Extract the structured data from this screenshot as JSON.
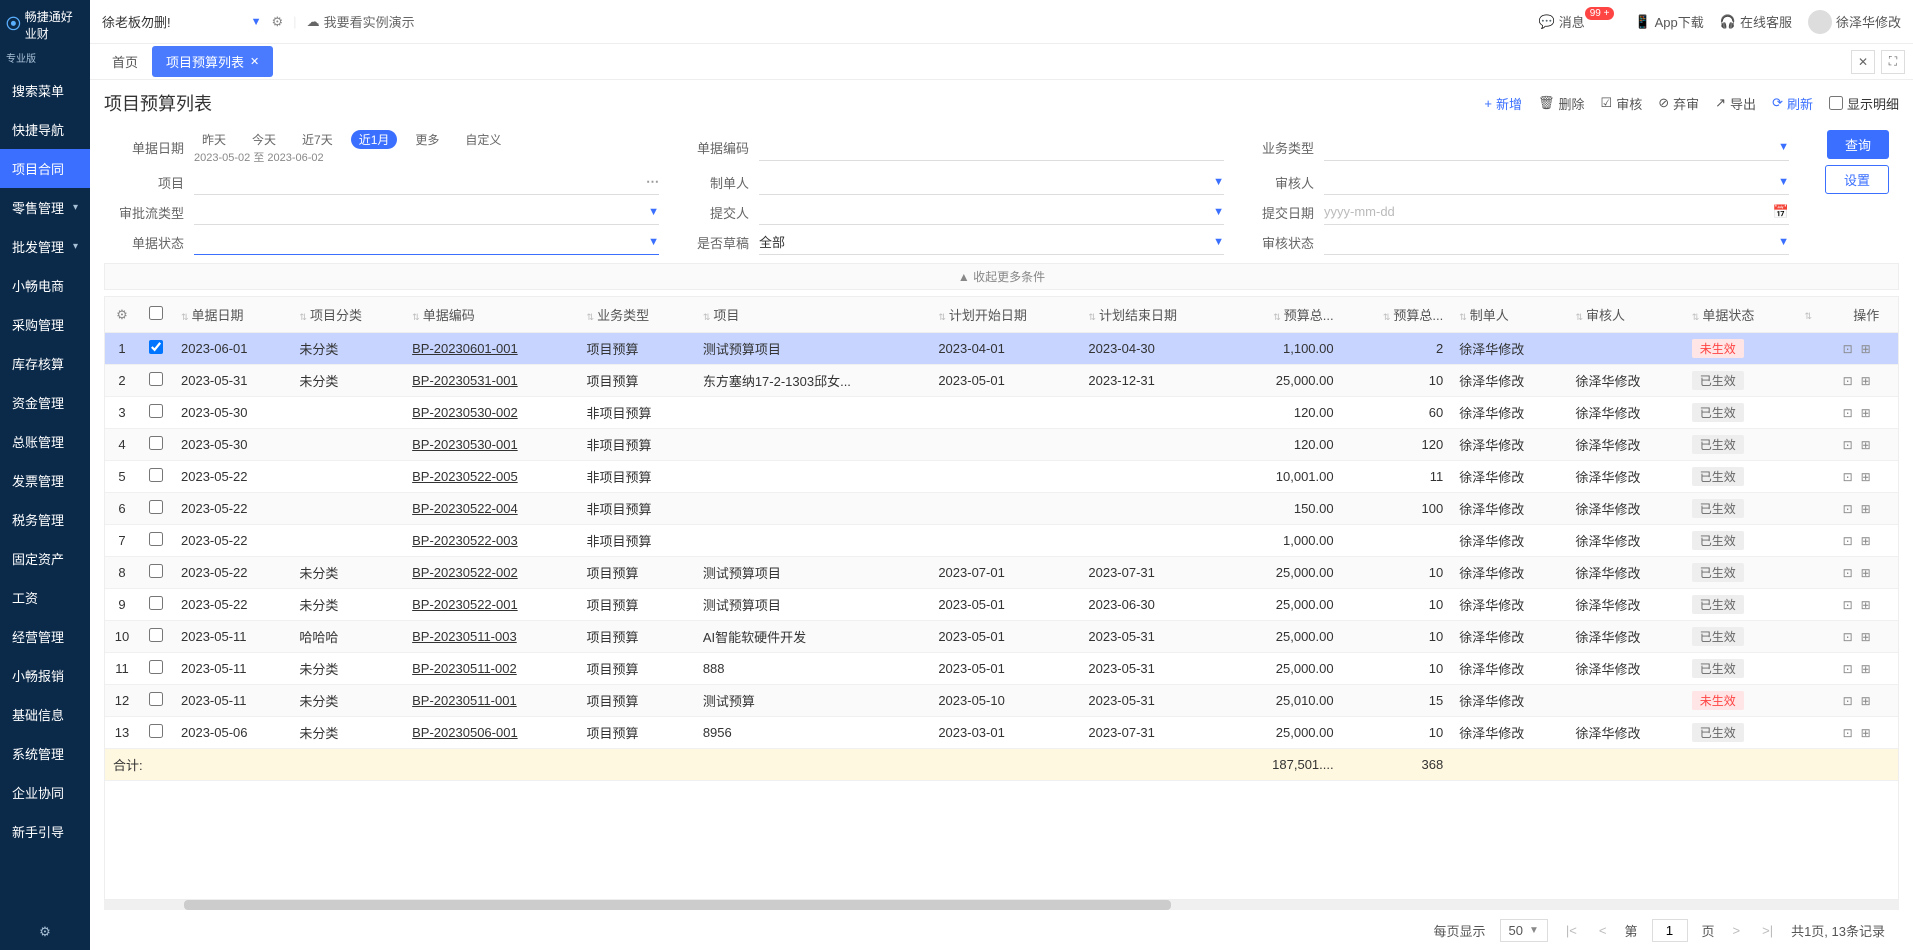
{
  "brand": {
    "name": "畅捷通好业财",
    "edition": "专业版"
  },
  "sidebar": {
    "items": [
      {
        "label": "搜索菜单",
        "caret": false
      },
      {
        "label": "快捷导航",
        "caret": false
      },
      {
        "label": "项目合同",
        "caret": false,
        "active": true
      },
      {
        "label": "零售管理",
        "caret": true
      },
      {
        "label": "批发管理",
        "caret": true
      },
      {
        "label": "小畅电商",
        "caret": false
      },
      {
        "label": "采购管理",
        "caret": false
      },
      {
        "label": "库存核算",
        "caret": false
      },
      {
        "label": "资金管理",
        "caret": false
      },
      {
        "label": "总账管理",
        "caret": false
      },
      {
        "label": "发票管理",
        "caret": false
      },
      {
        "label": "税务管理",
        "caret": false
      },
      {
        "label": "固定资产",
        "caret": false
      },
      {
        "label": "工资",
        "caret": false
      },
      {
        "label": "经营管理",
        "caret": false
      },
      {
        "label": "小畅报销",
        "caret": false
      },
      {
        "label": "基础信息",
        "caret": false
      },
      {
        "label": "系统管理",
        "caret": false
      },
      {
        "label": "企业协同",
        "caret": false
      },
      {
        "label": "新手引导",
        "caret": false
      }
    ]
  },
  "topbar": {
    "org": "徐老板勿删!",
    "demo": "我要看实例演示",
    "right": {
      "msg": "消息",
      "msg_badge": "99 +",
      "download": "App下载",
      "service": "在线客服",
      "user": "徐泽华修改"
    }
  },
  "tabs": {
    "home": "首页",
    "active": "项目预算列表"
  },
  "page": {
    "title": "项目预算列表",
    "actions": {
      "add": "新增",
      "del": "删除",
      "audit": "审核",
      "abandon": "弃审",
      "export": "导出",
      "refresh": "刷新",
      "detail": "显示明细"
    },
    "query": "查询",
    "settings": "设置"
  },
  "filter": {
    "labels": {
      "date": "单据日期",
      "code": "单据编码",
      "biztype": "业务类型",
      "project": "项目",
      "creator": "制单人",
      "auditor": "审核人",
      "flow": "审批流类型",
      "submitter": "提交人",
      "submitdate": "提交日期",
      "status": "单据状态",
      "draft": "是否草稿",
      "auditstatus": "审核状态"
    },
    "date_pills": {
      "yesterday": "昨天",
      "today": "今天",
      "week": "近7天",
      "month": "近1月",
      "more": "更多",
      "custom": "自定义"
    },
    "date_range": "2023-05-02 至 2023-06-02",
    "draft_value": "全部",
    "date_placeholder": "yyyy-mm-dd",
    "collapse": "收起更多条件"
  },
  "table": {
    "columns": {
      "date": "单据日期",
      "cat": "项目分类",
      "code": "单据编码",
      "biztype": "业务类型",
      "project": "项目",
      "start": "计划开始日期",
      "end": "计划结束日期",
      "total": "预算总...",
      "count": "预算总...",
      "creator": "制单人",
      "auditor": "审核人",
      "status": "单据状态",
      "ops": "操作"
    },
    "rows": [
      {
        "n": 1,
        "date": "2023-06-01",
        "cat": "未分类",
        "code": "BP-20230601-001",
        "biz": "项目预算",
        "proj": "测试预算项目",
        "start": "2023-04-01",
        "end": "2023-04-30",
        "total": "1,100.00",
        "cnt": "2",
        "creator": "徐泽华修改",
        "auditor": "",
        "status": "未生效",
        "sred": true,
        "sel": true
      },
      {
        "n": 2,
        "date": "2023-05-31",
        "cat": "未分类",
        "code": "BP-20230531-001",
        "biz": "项目预算",
        "proj": "东方塞纳17-2-1303邱女...",
        "start": "2023-05-01",
        "end": "2023-12-31",
        "total": "25,000.00",
        "cnt": "10",
        "creator": "徐泽华修改",
        "auditor": "徐泽华修改",
        "status": "已生效"
      },
      {
        "n": 3,
        "date": "2023-05-30",
        "cat": "",
        "code": "BP-20230530-002",
        "biz": "非项目预算",
        "proj": "",
        "start": "",
        "end": "",
        "total": "120.00",
        "cnt": "60",
        "creator": "徐泽华修改",
        "auditor": "徐泽华修改",
        "status": "已生效"
      },
      {
        "n": 4,
        "date": "2023-05-30",
        "cat": "",
        "code": "BP-20230530-001",
        "biz": "非项目预算",
        "proj": "",
        "start": "",
        "end": "",
        "total": "120.00",
        "cnt": "120",
        "creator": "徐泽华修改",
        "auditor": "徐泽华修改",
        "status": "已生效"
      },
      {
        "n": 5,
        "date": "2023-05-22",
        "cat": "",
        "code": "BP-20230522-005",
        "biz": "非项目预算",
        "proj": "",
        "start": "",
        "end": "",
        "total": "10,001.00",
        "cnt": "11",
        "creator": "徐泽华修改",
        "auditor": "徐泽华修改",
        "status": "已生效"
      },
      {
        "n": 6,
        "date": "2023-05-22",
        "cat": "",
        "code": "BP-20230522-004",
        "biz": "非项目预算",
        "proj": "",
        "start": "",
        "end": "",
        "total": "150.00",
        "cnt": "100",
        "creator": "徐泽华修改",
        "auditor": "徐泽华修改",
        "status": "已生效"
      },
      {
        "n": 7,
        "date": "2023-05-22",
        "cat": "",
        "code": "BP-20230522-003",
        "biz": "非项目预算",
        "proj": "",
        "start": "",
        "end": "",
        "total": "1,000.00",
        "cnt": "",
        "creator": "徐泽华修改",
        "auditor": "徐泽华修改",
        "status": "已生效"
      },
      {
        "n": 8,
        "date": "2023-05-22",
        "cat": "未分类",
        "code": "BP-20230522-002",
        "biz": "项目预算",
        "proj": "测试预算项目",
        "start": "2023-07-01",
        "end": "2023-07-31",
        "total": "25,000.00",
        "cnt": "10",
        "creator": "徐泽华修改",
        "auditor": "徐泽华修改",
        "status": "已生效"
      },
      {
        "n": 9,
        "date": "2023-05-22",
        "cat": "未分类",
        "code": "BP-20230522-001",
        "biz": "项目预算",
        "proj": "测试预算项目",
        "start": "2023-05-01",
        "end": "2023-06-30",
        "total": "25,000.00",
        "cnt": "10",
        "creator": "徐泽华修改",
        "auditor": "徐泽华修改",
        "status": "已生效"
      },
      {
        "n": 10,
        "date": "2023-05-11",
        "cat": "哈哈哈",
        "code": "BP-20230511-003",
        "biz": "项目预算",
        "proj": "AI智能软硬件开发",
        "start": "2023-05-01",
        "end": "2023-05-31",
        "total": "25,000.00",
        "cnt": "10",
        "creator": "徐泽华修改",
        "auditor": "徐泽华修改",
        "status": "已生效"
      },
      {
        "n": 11,
        "date": "2023-05-11",
        "cat": "未分类",
        "code": "BP-20230511-002",
        "biz": "项目预算",
        "proj": "888",
        "start": "2023-05-01",
        "end": "2023-05-31",
        "total": "25,000.00",
        "cnt": "10",
        "creator": "徐泽华修改",
        "auditor": "徐泽华修改",
        "status": "已生效"
      },
      {
        "n": 12,
        "date": "2023-05-11",
        "cat": "未分类",
        "code": "BP-20230511-001",
        "biz": "项目预算",
        "proj": "测试预算",
        "start": "2023-05-10",
        "end": "2023-05-31",
        "total": "25,010.00",
        "cnt": "15",
        "creator": "徐泽华修改",
        "auditor": "",
        "status": "未生效",
        "sred": true
      },
      {
        "n": 13,
        "date": "2023-05-06",
        "cat": "未分类",
        "code": "BP-20230506-001",
        "biz": "项目预算",
        "proj": "8956",
        "start": "2023-03-01",
        "end": "2023-07-31",
        "total": "25,000.00",
        "cnt": "10",
        "creator": "徐泽华修改",
        "auditor": "徐泽华修改",
        "status": "已生效"
      }
    ],
    "total": {
      "label": "合计:",
      "total": "187,501....",
      "cnt": "368"
    }
  },
  "pager": {
    "per_label": "每页显示",
    "per": "50",
    "page_pre": "第",
    "page": "1",
    "page_post": "页",
    "info": "共1页, 13条记录"
  }
}
